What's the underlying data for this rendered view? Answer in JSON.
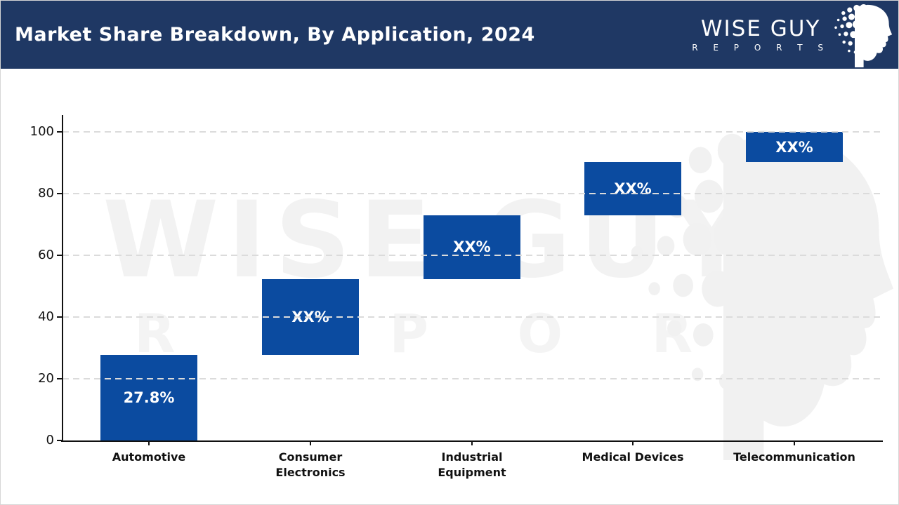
{
  "header": {
    "title": "Market Share Breakdown, By Application, 2024",
    "logo": {
      "line1": "WISE GUY",
      "line2": "R E P O R T S"
    }
  },
  "watermark": {
    "line1": "WISE GUY",
    "line2": "R E P O R T S"
  },
  "chart_data": {
    "type": "bar",
    "subtype": "waterfall-floating-bars",
    "title": "Market Share Breakdown, By Application, 2024",
    "categories": [
      "Automotive",
      "Consumer Electronics",
      "Industrial Equipment",
      "Medical Devices",
      "Telecommunication"
    ],
    "segments": [
      {
        "category": "Automotive",
        "start": 0,
        "end": 27.8,
        "label": "27.8%"
      },
      {
        "category": "Consumer Electronics",
        "start": 27.8,
        "end": 52.3,
        "label": "XX%"
      },
      {
        "category": "Industrial Equipment",
        "start": 52.3,
        "end": 73.0,
        "label": "XX%"
      },
      {
        "category": "Medical Devices",
        "start": 73.0,
        "end": 90.2,
        "label": "XX%"
      },
      {
        "category": "Telecommunication",
        "start": 90.2,
        "end": 100,
        "label": "XX%"
      }
    ],
    "xlabel": "",
    "ylabel": "",
    "ylim": [
      0,
      100
    ],
    "yticks": [
      0,
      20,
      40,
      60,
      80,
      100
    ],
    "grid": "horizontal-dashed",
    "legend": "none",
    "bar_color": "#0B4BA0",
    "bar_label_color": "#FFFFFF"
  },
  "colors": {
    "header_bg": "#1F3864",
    "bar": "#0B4BA0",
    "grid": "#DBDBDB",
    "axis": "#111111",
    "watermark": "#F2F2F2",
    "page_border": "#D6D6D6"
  }
}
